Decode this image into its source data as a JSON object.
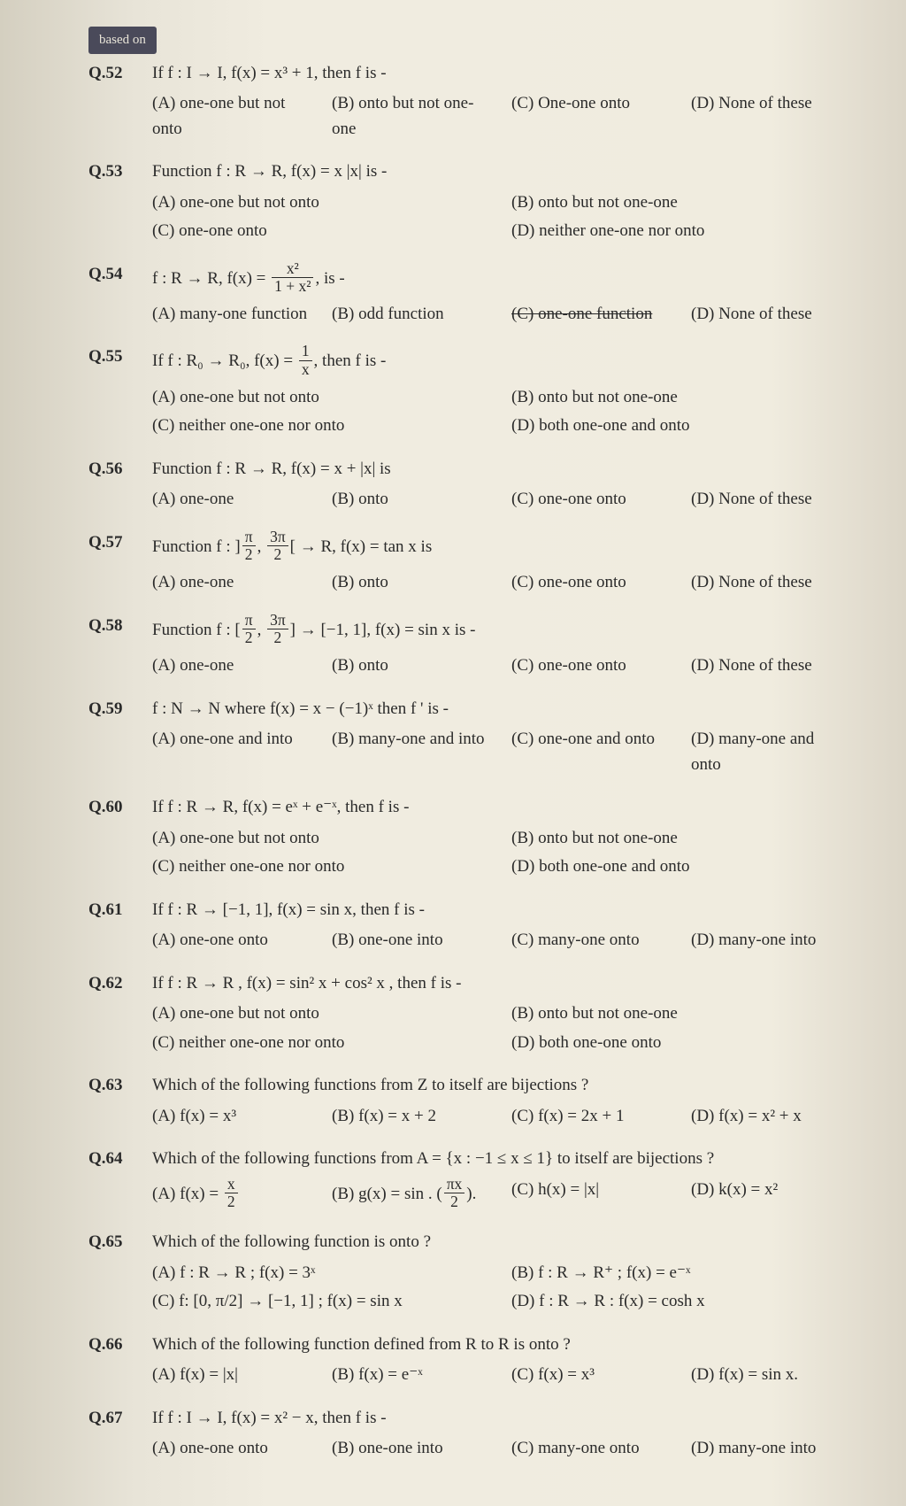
{
  "badge": "based on",
  "questions": [
    {
      "num": "Q.52",
      "prompt": "If f : I → I, f(x) = x³ + 1, then f is -",
      "layout": "q",
      "opts": [
        "(A) one-one but not onto",
        "(B) onto but not one-one",
        "(C) One-one onto",
        "(D) None of these"
      ]
    },
    {
      "num": "Q.53",
      "prompt": "Function f : R → R, f(x) = x |x| is -",
      "layout": "h",
      "opts": [
        "(A) one-one but not onto",
        "(B) onto but not one-one",
        "(C) one-one onto",
        "(D) neither one-one nor onto"
      ]
    },
    {
      "num": "Q.54",
      "prompt_pre": "f : R → R, f(x) = ",
      "frac_n": "x²",
      "frac_d": "1 + x²",
      "prompt_post": ", is -",
      "layout": "q",
      "opts": [
        "(A) many-one function",
        "(B) odd function",
        "(C) one-one function",
        "(D) None of these"
      ],
      "strike_index": 2
    },
    {
      "num": "Q.55",
      "prompt_pre": "If f : R₀ → R₀, f(x) = ",
      "frac_n": "1",
      "frac_d": "x",
      "prompt_post": ", then f is -",
      "layout": "h",
      "opts": [
        "(A) one-one but not onto",
        "(B) onto but not one-one",
        "(C) neither one-one nor onto",
        "(D) both one-one and onto"
      ]
    },
    {
      "num": "Q.56",
      "prompt": "Function f : R → R, f(x) = x + |x| is",
      "layout": "q",
      "opts": [
        "(A) one-one",
        "(B) onto",
        "(C) one-one onto",
        "(D) None of these"
      ]
    },
    {
      "num": "Q.57",
      "prompt_pre": "Function f : ]",
      "frac_n": "π",
      "frac_d": "2",
      "prompt_mid": ", ",
      "frac2_n": "3π",
      "frac2_d": "2",
      "prompt_post": "[ → R, f(x) = tan x is",
      "layout": "q",
      "opts": [
        "(A) one-one",
        "(B) onto",
        "(C) one-one onto",
        "(D) None of these"
      ]
    },
    {
      "num": "Q.58",
      "prompt_pre": "Function f : [",
      "frac_n": "π",
      "frac_d": "2",
      "prompt_mid": ", ",
      "frac2_n": "3π",
      "frac2_d": "2",
      "prompt_post": "] → [−1, 1], f(x) = sin x is -",
      "layout": "q",
      "opts": [
        "(A) one-one",
        "(B) onto",
        "(C) one-one onto",
        "(D) None of these"
      ]
    },
    {
      "num": "Q.59",
      "prompt": "f : N → N where f(x) = x − (−1)ˣ then f ' is -",
      "layout": "q",
      "opts": [
        "(A) one-one and into",
        "(B) many-one and into",
        "(C) one-one and onto",
        "(D) many-one and onto"
      ]
    },
    {
      "num": "Q.60",
      "prompt": "If f : R → R, f(x) = eˣ + e⁻ˣ, then f is -",
      "layout": "h",
      "opts": [
        "(A) one-one but not onto",
        "(B) onto but not one-one",
        "(C) neither one-one nor onto",
        "(D) both one-one and onto"
      ]
    },
    {
      "num": "Q.61",
      "prompt": "If f : R → [−1, 1], f(x) = sin x, then f is -",
      "layout": "q",
      "opts": [
        "(A) one-one onto",
        "(B) one-one into",
        "(C) many-one onto",
        "(D) many-one into"
      ]
    },
    {
      "num": "Q.62",
      "prompt": "If f : R → R , f(x) = sin² x + cos² x , then f is -",
      "layout": "h",
      "opts": [
        "(A) one-one but not onto",
        "(B) onto but not one-one",
        "(C) neither one-one nor onto",
        "(D) both one-one onto"
      ]
    },
    {
      "num": "Q.63",
      "prompt": "Which of the following functions from Z to itself are bijections ?",
      "layout": "q",
      "opts": [
        "(A) f(x) = x³",
        "(B) f(x) = x + 2",
        "(C) f(x) = 2x + 1",
        "(D) f(x) = x² + x"
      ]
    },
    {
      "num": "Q.64",
      "prompt": "Which of the following functions from A = {x : −1 ≤ x ≤ 1} to itself are bijections ?",
      "layout": "q",
      "opt_a_label": "(A) f(x) = ",
      "opt_a_frac_n": "x",
      "opt_a_frac_d": "2",
      "opt_b_label": "(B) g(x) = sin . (",
      "opt_b_frac_n": "πx",
      "opt_b_frac_d": "2",
      "opt_b_post": ").",
      "opt_c": "(C) h(x) = |x|",
      "opt_d": "(D) k(x) = x²"
    },
    {
      "num": "Q.65",
      "prompt": "Which of the following function is onto ?",
      "layout": "h",
      "opts": [
        "(A) f : R → R ; f(x) = 3ˣ",
        "(B) f : R → R⁺ ; f(x) = e⁻ˣ",
        "(C) f: [0, π/2] → [−1, 1] ; f(x) = sin x",
        "(D) f : R → R : f(x) = cosh x"
      ]
    },
    {
      "num": "Q.66",
      "prompt": "Which of the following function defined from R to R is onto ?",
      "layout": "q",
      "opts": [
        "(A) f(x) = |x|",
        "(B) f(x) = e⁻ˣ",
        "(C) f(x) = x³",
        "(D) f(x) = sin x."
      ]
    },
    {
      "num": "Q.67",
      "prompt": "If f : I → I, f(x) = x² − x, then f is -",
      "layout": "q",
      "opts": [
        "(A) one-one onto",
        "(B) one-one into",
        "(C) many-one onto",
        "(D) many-one into"
      ]
    }
  ]
}
